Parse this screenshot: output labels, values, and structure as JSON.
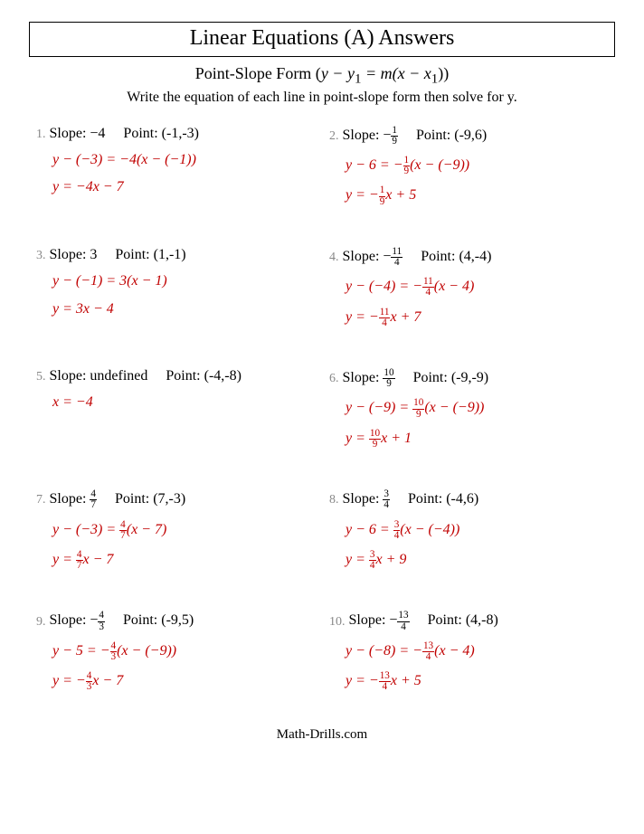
{
  "title": "Linear Equations (A) Answers",
  "subtitle_prefix": "Point-Slope Form (",
  "subtitle_formula_lhs": "y − y",
  "subtitle_formula_sub1": "1",
  "subtitle_formula_mid": " = m(x − x",
  "subtitle_formula_sub2": "1",
  "subtitle_formula_end": "))",
  "instruction": "Write the equation of each line in point-slope form then solve for y.",
  "footer": "Math-Drills.com",
  "problems": [
    {
      "num": "1.",
      "slope_label": "Slope: ",
      "slope": "−4",
      "point_label": "Point: ",
      "point": "(-1,-3)",
      "ans1_pre": "y − (−3) = −4(x − (−1))",
      "ans2_pre": "y = −4x − 7"
    },
    {
      "num": "2.",
      "slope_label": "Slope: ",
      "slope_frac": {
        "neg": true,
        "n": "1",
        "d": "9"
      },
      "point_label": "Point: ",
      "point": "(-9,6)",
      "ans1_parts": [
        "y − 6 = −",
        {
          "n": "1",
          "d": "9"
        },
        "(x − (−9))"
      ],
      "ans2_parts": [
        "y = −",
        {
          "n": "1",
          "d": "9"
        },
        "x + 5"
      ]
    },
    {
      "num": "3.",
      "slope_label": "Slope: ",
      "slope": "3",
      "point_label": "Point: ",
      "point": "(1,-1)",
      "ans1_pre": "y − (−1) = 3(x − 1)",
      "ans2_pre": "y = 3x − 4"
    },
    {
      "num": "4.",
      "slope_label": "Slope: ",
      "slope_frac": {
        "neg": true,
        "n": "11",
        "d": "4"
      },
      "point_label": "Point: ",
      "point": "(4,-4)",
      "ans1_parts": [
        "y − (−4) = −",
        {
          "n": "11",
          "d": "4"
        },
        "(x − 4)"
      ],
      "ans2_parts": [
        "y = −",
        {
          "n": "11",
          "d": "4"
        },
        "x + 7"
      ]
    },
    {
      "num": "5.",
      "slope_label": "Slope: ",
      "slope": "undefined",
      "point_label": "Point: ",
      "point": "(-4,-8)",
      "ans1_pre": "x = −4",
      "ans2_pre": ""
    },
    {
      "num": "6.",
      "slope_label": "Slope: ",
      "slope_frac": {
        "neg": false,
        "n": "10",
        "d": "9"
      },
      "point_label": "Point: ",
      "point": "(-9,-9)",
      "ans1_parts": [
        "y − (−9) = ",
        {
          "n": "10",
          "d": "9"
        },
        "(x − (−9))"
      ],
      "ans2_parts": [
        "y = ",
        {
          "n": "10",
          "d": "9"
        },
        "x + 1"
      ]
    },
    {
      "num": "7.",
      "slope_label": "Slope: ",
      "slope_frac": {
        "neg": false,
        "n": "4",
        "d": "7"
      },
      "point_label": "Point: ",
      "point": "(7,-3)",
      "ans1_parts": [
        "y − (−3) = ",
        {
          "n": "4",
          "d": "7"
        },
        "(x − 7)"
      ],
      "ans2_parts": [
        "y = ",
        {
          "n": "4",
          "d": "7"
        },
        "x − 7"
      ]
    },
    {
      "num": "8.",
      "slope_label": "Slope: ",
      "slope_frac": {
        "neg": false,
        "n": "3",
        "d": "4"
      },
      "point_label": "Point: ",
      "point": "(-4,6)",
      "ans1_parts": [
        "y − 6 = ",
        {
          "n": "3",
          "d": "4"
        },
        "(x − (−4))"
      ],
      "ans2_parts": [
        "y = ",
        {
          "n": "3",
          "d": "4"
        },
        "x + 9"
      ]
    },
    {
      "num": "9.",
      "slope_label": "Slope: ",
      "slope_frac": {
        "neg": true,
        "n": "4",
        "d": "3"
      },
      "point_label": "Point: ",
      "point": "(-9,5)",
      "ans1_parts": [
        "y − 5 = −",
        {
          "n": "4",
          "d": "3"
        },
        "(x − (−9))"
      ],
      "ans2_parts": [
        "y = −",
        {
          "n": "4",
          "d": "3"
        },
        "x − 7"
      ]
    },
    {
      "num": "10.",
      "slope_label": "Slope: ",
      "slope_frac": {
        "neg": true,
        "n": "13",
        "d": "4"
      },
      "point_label": "Point: ",
      "point": "(4,-8)",
      "ans1_parts": [
        "y − (−8) = −",
        {
          "n": "13",
          "d": "4"
        },
        "(x − 4)"
      ],
      "ans2_parts": [
        "y = −",
        {
          "n": "13",
          "d": "4"
        },
        "x + 5"
      ]
    }
  ]
}
